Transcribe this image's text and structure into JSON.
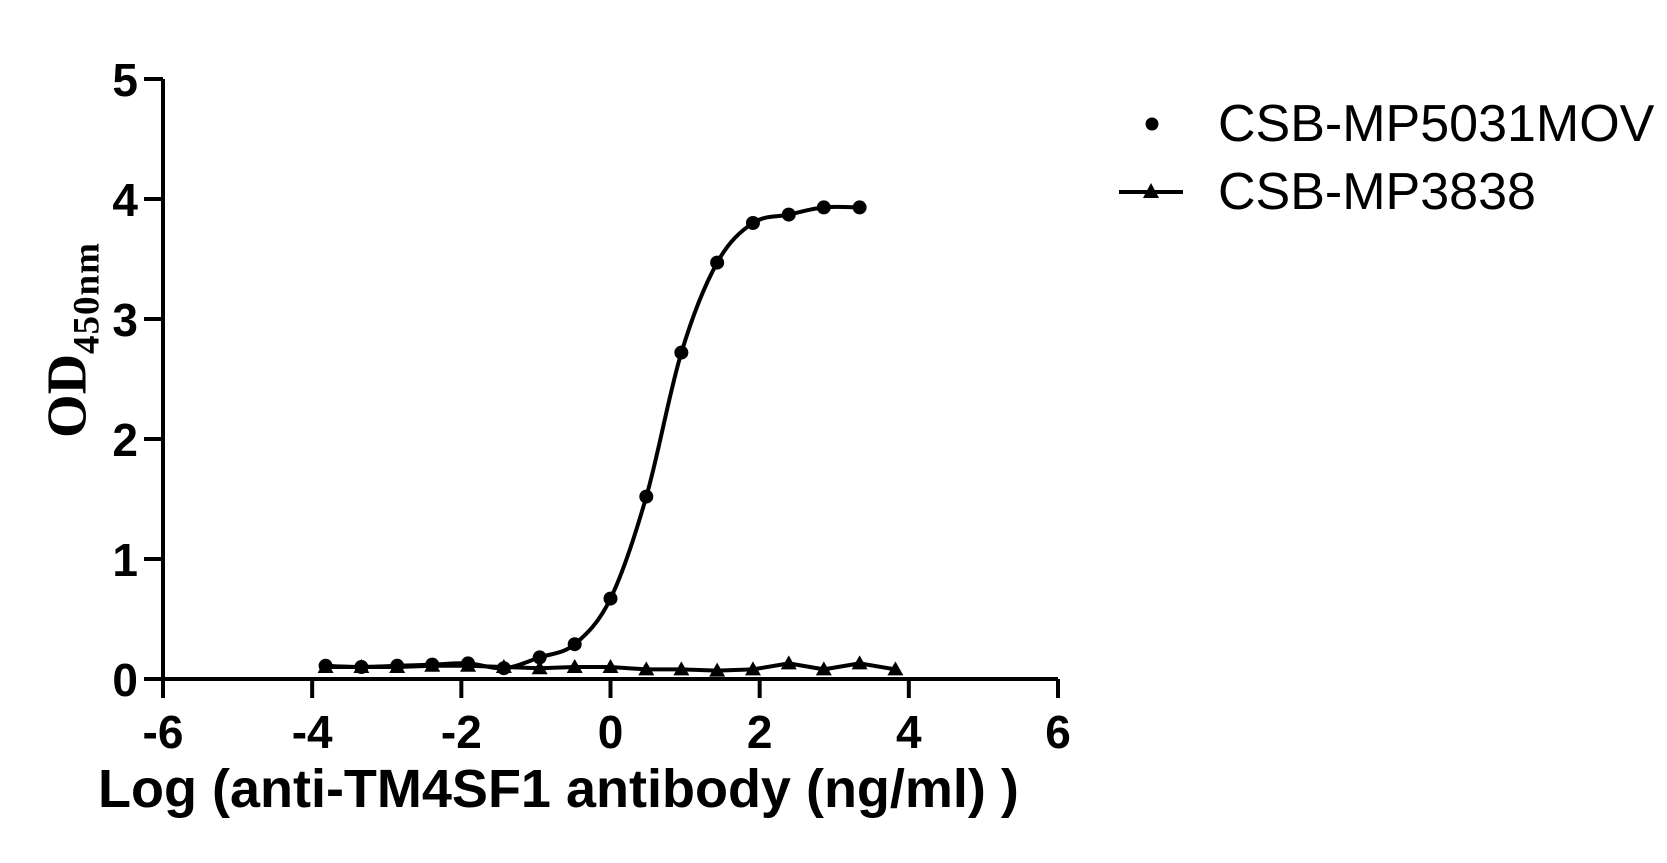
{
  "figure": {
    "background_color": "#ffffff",
    "line_color": "#000000",
    "text_color": "#000000"
  },
  "labels": {
    "ylabel_main": "OD",
    "ylabel_sub": "450nm",
    "xlabel": "Log (anti-TM4SF1 antibody (ng/ml) )"
  },
  "legend": {
    "items": [
      {
        "label": "CSB-MP5031MOV",
        "marker": "filled-circle"
      },
      {
        "label": "CSB-MP3838",
        "marker": "line-with-filled-triangle"
      }
    ]
  },
  "chart_data": {
    "type": "line",
    "title": "",
    "xlabel": "Log (anti-TM4SF1 antibody (ng/ml) )",
    "ylabel": "OD450nm",
    "xlim": [
      -6,
      6
    ],
    "ylim": [
      0,
      5
    ],
    "x_ticks": [
      -6,
      -4,
      -2,
      0,
      2,
      4,
      6
    ],
    "y_ticks": [
      0,
      1,
      2,
      3,
      4,
      5
    ],
    "grid": false,
    "legend_position": "top-right",
    "series": [
      {
        "name": "CSB-MP5031MOV",
        "marker": "circle",
        "smooth": true,
        "x": [
          -3.82,
          -3.34,
          -2.86,
          -2.39,
          -1.91,
          -1.43,
          -0.95,
          -0.48,
          0.0,
          0.48,
          0.95,
          1.43,
          1.91,
          2.39,
          2.86,
          3.34
        ],
        "y": [
          0.11,
          0.1,
          0.11,
          0.12,
          0.13,
          0.09,
          0.18,
          0.29,
          0.67,
          1.52,
          2.72,
          3.47,
          3.8,
          3.87,
          3.93,
          3.93
        ]
      },
      {
        "name": "CSB-MP3838",
        "marker": "triangle",
        "smooth": false,
        "x": [
          -3.82,
          -3.34,
          -2.86,
          -2.39,
          -1.91,
          -1.43,
          -0.95,
          -0.48,
          0.0,
          0.48,
          0.95,
          1.43,
          1.91,
          2.39,
          2.86,
          3.34,
          3.82
        ],
        "y": [
          0.1,
          0.1,
          0.1,
          0.11,
          0.11,
          0.1,
          0.09,
          0.1,
          0.1,
          0.08,
          0.08,
          0.07,
          0.08,
          0.13,
          0.08,
          0.13,
          0.08
        ]
      }
    ]
  }
}
